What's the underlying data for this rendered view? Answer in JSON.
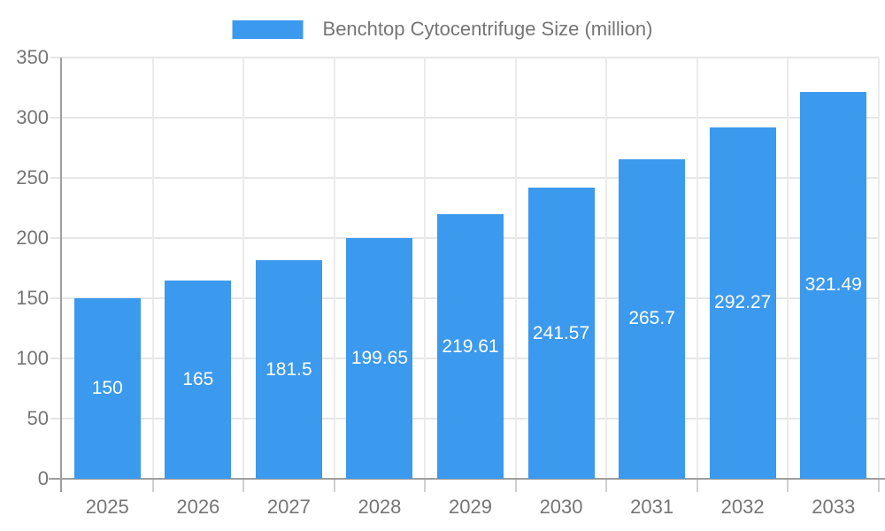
{
  "legend": {
    "label": "Benchtop Cytocentrifuge Size (million)",
    "swatch_color": "#3B99EE"
  },
  "chart_data": {
    "type": "bar",
    "title": "Benchtop Cytocentrifuge Size (million)",
    "categories": [
      "2025",
      "2026",
      "2027",
      "2028",
      "2029",
      "2030",
      "2031",
      "2032",
      "2033"
    ],
    "values": [
      150,
      165,
      181.5,
      199.65,
      219.61,
      241.57,
      265.7,
      292.27,
      321.49
    ],
    "value_labels": [
      "150",
      "165",
      "181.5",
      "199.65",
      "219.61",
      "241.57",
      "265.7",
      "292.27",
      "321.49"
    ],
    "xlabel": "",
    "ylabel": "",
    "ylim": [
      0,
      350
    ],
    "ytick_interval": 50,
    "ytick_labels": [
      "0",
      "50",
      "100",
      "150",
      "200",
      "250",
      "300",
      "350"
    ],
    "grid": true,
    "legend_position": "top",
    "colors": {
      "bar": "#3B99EE",
      "value_label": "#FFFFFF",
      "axis_label": "#757575",
      "axis_line": "#9E9E9E",
      "hgrid": "#E6E6E6",
      "vgrid": "#EBEBEB",
      "minor_tick": "#D0D0D0"
    }
  }
}
